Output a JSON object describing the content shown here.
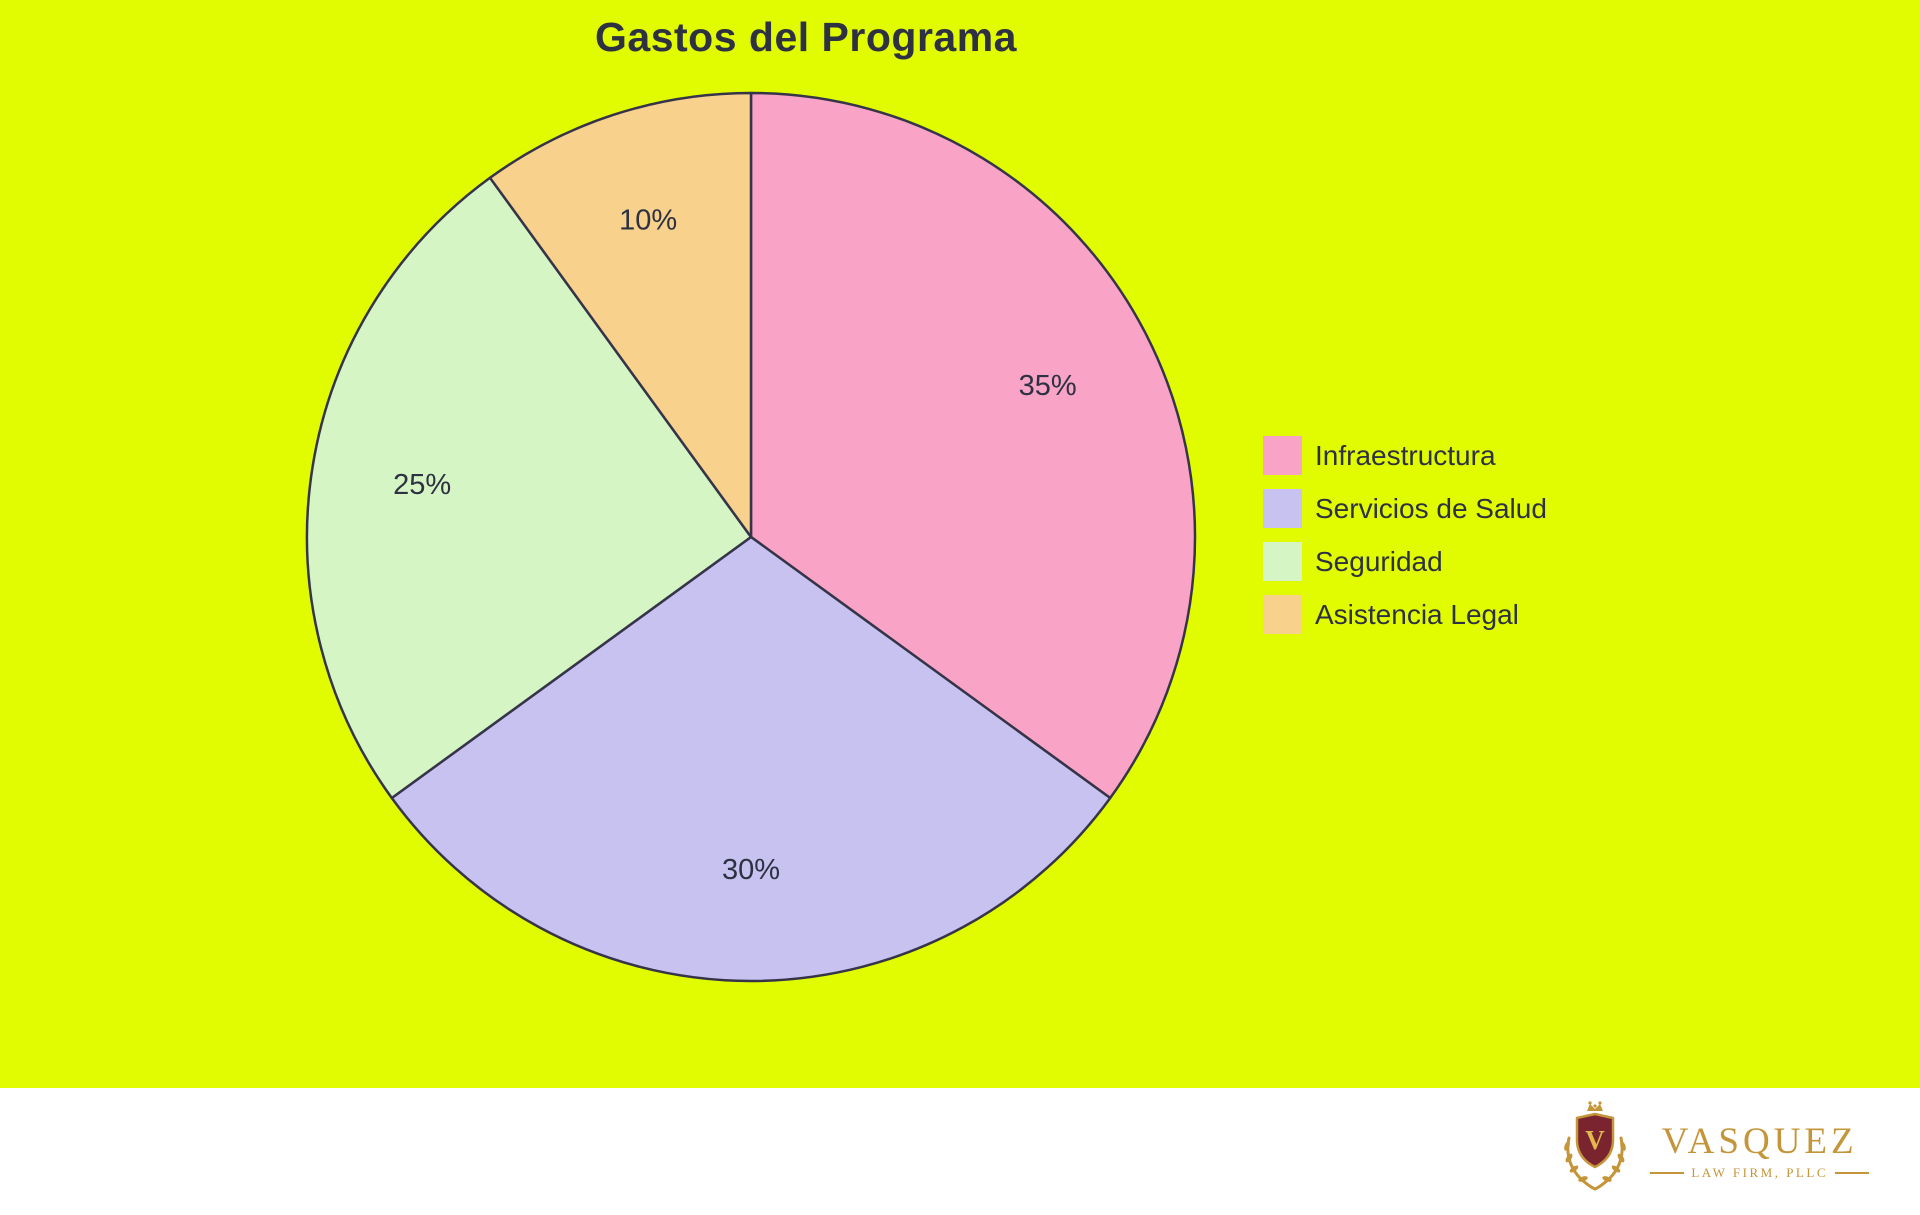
{
  "page": {
    "background_color": "#E1FB00",
    "footer_background_color": "#FFFFFF"
  },
  "chart_data": {
    "type": "pie",
    "title": "Gastos del Programa",
    "labels": [
      "Infraestructura",
      "Servicios de Salud",
      "Seguridad",
      "Asistencia Legal"
    ],
    "values": [
      35,
      30,
      25,
      10
    ],
    "value_labels": [
      "35%",
      "30%",
      "25%",
      "10%"
    ],
    "colors": [
      "#F9A3C7",
      "#C8C2F0",
      "#D5F5C5",
      "#F8D18D"
    ],
    "slice_border_color": "#353449",
    "text_color": "#2E3142",
    "start_angle": "top",
    "direction": "clockwise",
    "legend_position": "right"
  },
  "footer": {
    "brand_name": "VASQUEZ",
    "brand_subtitle": "LAW FIRM, PLLC",
    "brand_color": "#C49539"
  }
}
